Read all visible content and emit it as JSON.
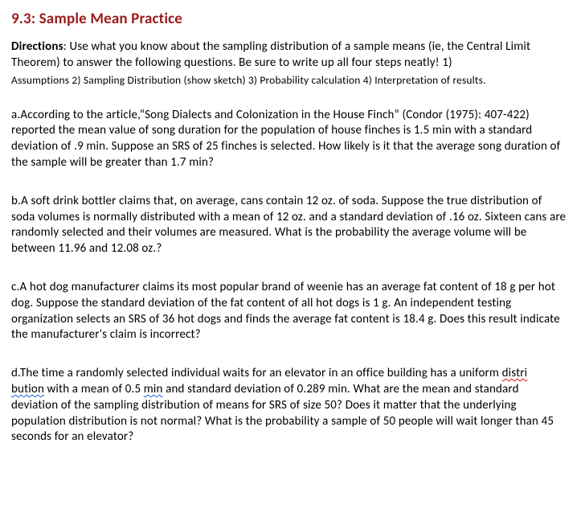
{
  "title": {
    "text": "9.3: Sample Mean Practice",
    "color": "#9a1b1b",
    "fontsize": 19
  },
  "directions": {
    "lead": "Directions",
    "body": ": Use what you know about the sampling distribution of a sample means (ie, the Central Limit Theorem) to answer the following questions. Be sure to write up all four steps neatly!  1)",
    "sub": "Assumptions 2) Sampling Distribution (show sketch) 3) Probability calculation 4) Interpretation of results.",
    "body_fontsize": 15,
    "sub_fontsize": 13.5
  },
  "problems": {
    "a": " a.According to the article,“Song Dialects and Colonization in the House Finch” (Condor (1975): 407-422) reported the mean value of song duration for the population of house finches is 1.5 min with a standard deviation of .9 min. Suppose an SRS of 25 finches is selected. How likely is it that the average song duration of the sample will be greater than 1.7 min?",
    "b": "b.A soft drink bottler claims that, on average, cans contain 12 oz. of soda. Suppose the true distribution of soda volumes is normally distributed with a mean of 12 oz. and a standard deviation of .16 oz. Sixteen cans are randomly selected and their volumes are measured. What is the probability the average volume will be between 11.96 and 12.08 oz.?",
    "c": "c.A hot dog manufacturer claims its most popular brand of weenie has an average fat content of 18 g per hot dog. Suppose the standard deviation of the fat content of all hot dogs is 1 g. An independent testing organization selects an SRS of 36 hot dogs and finds the average fat content is 18.4 g. Does this result indicate the manufacturer's claim is incorrect?",
    "d_parts": {
      "p1": "d.The time a randomly selected individual waits for an elevator in an office building has a uniform ",
      "word1": "distri",
      "p2": "bution",
      "p3": " with a mean of 0.5 ",
      "word2": "min",
      "p4": " and standard deviation of 0.289 min. What are the mean and standard deviation of the sampling distribution of means for SRS of size 50? Does it matter that the underlying population distribution is not normal? What is the probability a sample of 50 people will wait longer than 45 seconds for an elevator?"
    }
  },
  "style": {
    "body_fontsize": 15,
    "text_color": "#000000",
    "squiggle_color_red": "#d01414",
    "squiggle_color_blue": "#1a5fd0",
    "line_height": 1.32
  }
}
